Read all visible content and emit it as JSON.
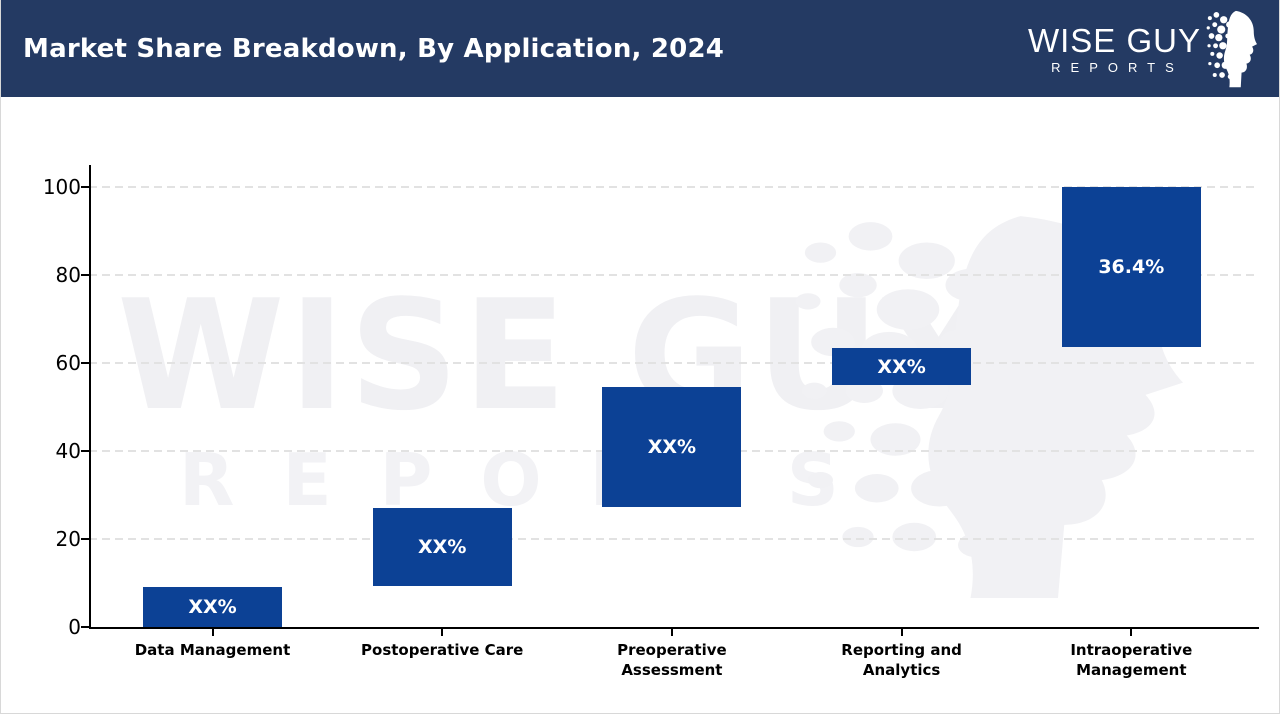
{
  "header": {
    "title": "Market Share Breakdown, By Application, 2024",
    "background": "#243A63",
    "logo": {
      "line1": "WISE GUY",
      "line2": "REPORTS"
    }
  },
  "watermark": {
    "line1": "WISE GUY",
    "line2": "REPORTS"
  },
  "chart_data": {
    "type": "bar",
    "subtype": "waterfall",
    "title": "Market Share Breakdown, By Application, 2024",
    "bar_color": "#0C4195",
    "bar_label_color": "#FFFFFF",
    "grid": "horizontal-dashed",
    "gridline_color": "#e2e2e2",
    "ylim": [
      0,
      105
    ],
    "yticks": [
      0,
      20,
      40,
      60,
      80,
      100
    ],
    "categories": [
      "Data Management",
      "Postoperative Care",
      "Preoperative Assessment",
      "Reporting and Analytics",
      "Intraoperative Management"
    ],
    "bars": [
      {
        "category": "Data Management",
        "category_display": "Data Management",
        "start": 0,
        "end": 9.2,
        "label": "XX%"
      },
      {
        "category": "Postoperative Care",
        "category_display": "Postoperative Care",
        "start": 9.4,
        "end": 27.0,
        "label": "XX%"
      },
      {
        "category": "Preoperative Assessment",
        "category_display": "Preoperative\nAssessment",
        "start": 27.3,
        "end": 54.5,
        "label": "XX%"
      },
      {
        "category": "Reporting and Analytics",
        "category_display": "Reporting and\nAnalytics",
        "start": 54.9,
        "end": 63.3,
        "label": "XX%"
      },
      {
        "category": "Intraoperative Management",
        "category_display": "Intraoperative\nManagement",
        "start": 63.6,
        "end": 100,
        "label": "36.4%"
      }
    ]
  }
}
